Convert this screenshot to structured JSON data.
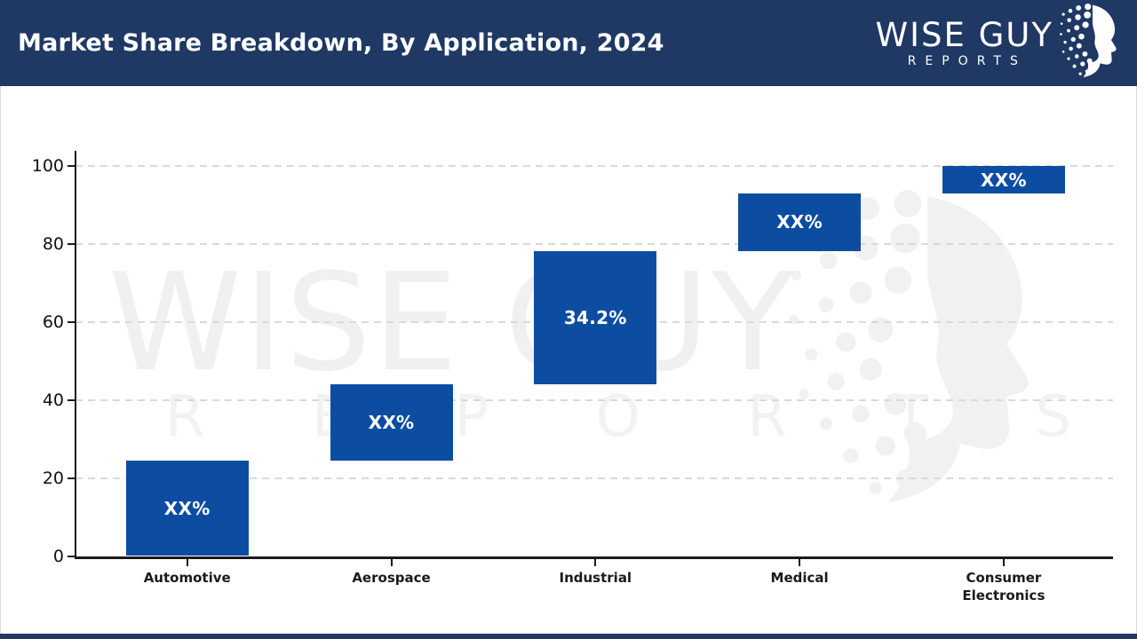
{
  "header": {
    "title": "Market Share Breakdown, By Application, 2024",
    "logo": {
      "line1": "WISE GUY",
      "line2": "REPORTS"
    }
  },
  "watermark": {
    "line1": "WISE GUY",
    "line2": "R E P O R T S"
  },
  "chart_data": {
    "type": "bar",
    "subtype": "waterfall",
    "title": "Market Share Breakdown, By Application, 2024",
    "categories": [
      "Automotive",
      "Aerospace",
      "Industrial",
      "Medical",
      "Consumer Electronics"
    ],
    "segments": [
      {
        "category": "Automotive",
        "start": 0,
        "end": 24.5,
        "label": "XX%"
      },
      {
        "category": "Aerospace",
        "start": 24.5,
        "end": 44.1,
        "label": "XX%"
      },
      {
        "category": "Industrial",
        "start": 44.1,
        "end": 78.3,
        "label": "34.2%"
      },
      {
        "category": "Medical",
        "start": 78.3,
        "end": 93.0,
        "label": "XX%"
      },
      {
        "category": "Consumer Electronics",
        "start": 93.0,
        "end": 100.0,
        "label": "XX%"
      }
    ],
    "xlabel": "",
    "ylabel": "",
    "ylim": [
      0,
      100
    ],
    "yticks": [
      0,
      20,
      40,
      60,
      80,
      100
    ],
    "grid": "dashed-horizontal",
    "legend": "none",
    "bar_color": "#0C4DA2",
    "bar_label_color": "#ffffff"
  },
  "colors": {
    "header_bg": "#1F3864",
    "footer_bg": "#1F3864",
    "axis": "#1a1a1a",
    "grid": "#d9d9d9",
    "watermark": "#f0f0f0"
  }
}
